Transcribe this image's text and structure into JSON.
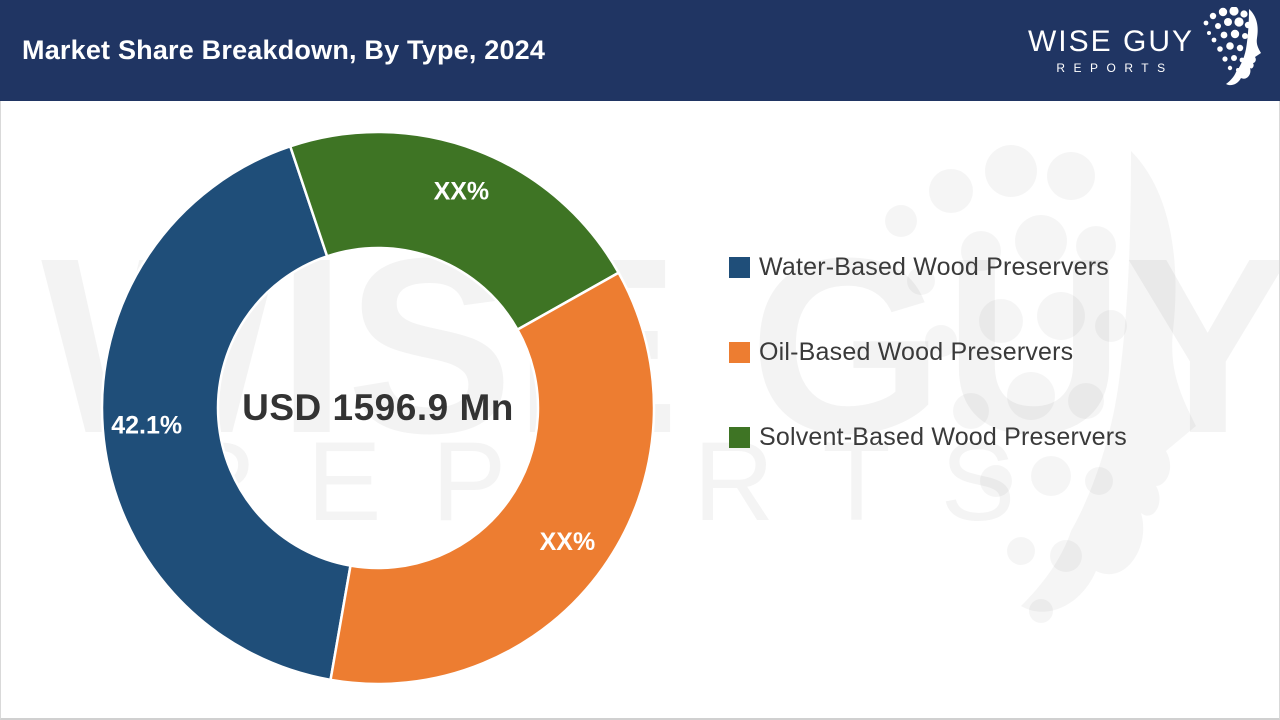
{
  "header": {
    "title": "Market Share Breakdown, By Type, 2024",
    "logo": {
      "name": "WISE GUY",
      "tagline": "REPORTS"
    }
  },
  "watermark": {
    "line1": "WISE GUY",
    "line2": "REPORTS"
  },
  "theme": {
    "header_bg": "#203563",
    "accent_blue": "#1F4E79",
    "accent_orange": "#ED7D31",
    "accent_green": "#3E7424",
    "legend_text_color": "#3A3A3A",
    "separator_color": "#FFFFFF"
  },
  "chart_data": {
    "type": "pie",
    "subtype": "donut",
    "title": "Market Share Breakdown, By Type, 2024",
    "center_label": "USD 1596.9 Mn",
    "legend_position": "right",
    "start_angle_deg_clockwise_from_top": 189.9,
    "draw_order": [
      0,
      2,
      1
    ],
    "segments": [
      {
        "label": "Water-Based Wood Preservers",
        "value_pct": 42.1,
        "display_label": "42.1%",
        "color": "#1F4E79"
      },
      {
        "label": "Oil-Based Wood Preservers",
        "value_pct": 35.9,
        "display_label": "XX%",
        "color": "#ED7D31"
      },
      {
        "label": "Solvent-Based Wood Preservers",
        "value_pct": 22.0,
        "display_label": "XX%",
        "color": "#3E7424"
      }
    ]
  }
}
